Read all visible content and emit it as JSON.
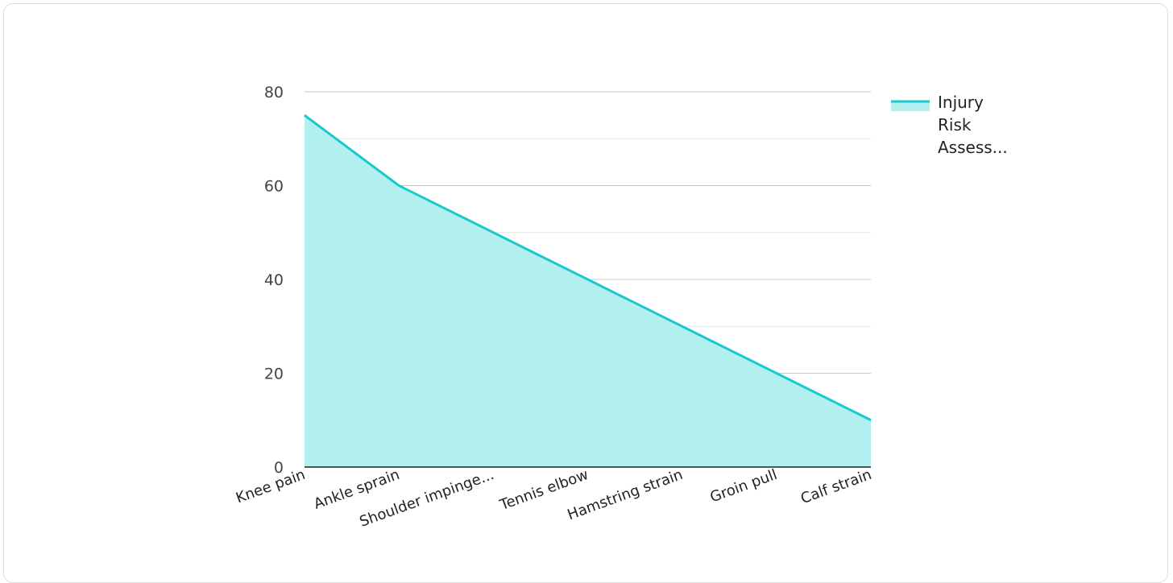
{
  "chart_data": {
    "type": "area",
    "categories": [
      "Knee pain",
      "Ankle sprain",
      "Shoulder impinge...",
      "Tennis elbow",
      "Hamstring strain",
      "Groin pull",
      "Calf strain"
    ],
    "series": [
      {
        "name": "Injury Risk Assess...",
        "values": [
          75,
          60,
          50,
          40,
          30,
          20,
          10
        ],
        "color": "#1cc8cc",
        "fill_color": "#b2f0ef"
      }
    ],
    "ylim": [
      0,
      80
    ],
    "yticks": [
      0,
      20,
      40,
      60,
      80
    ],
    "grid": true,
    "legend_position": "top-right",
    "legend_lines": [
      "Injury",
      "Risk",
      "Assess..."
    ]
  }
}
